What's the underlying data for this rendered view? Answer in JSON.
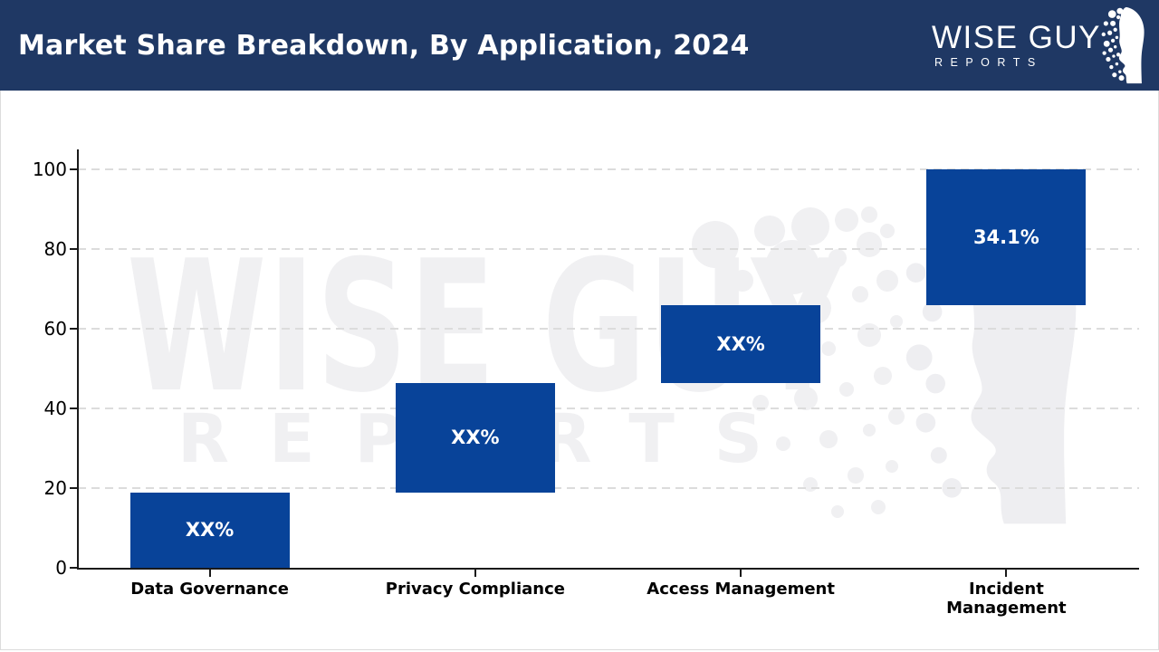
{
  "header": {
    "title": "Market Share Breakdown, By Application, 2024",
    "background": "#1f3864",
    "logo": {
      "line1": "WISE GUY",
      "line2": "REPORTS"
    }
  },
  "watermark": {
    "line1": "WISE GUY",
    "line2": "REPORTS"
  },
  "chart_data": {
    "type": "bar",
    "subtype": "floating-waterfall",
    "title": "Market Share Breakdown, By Application, 2024",
    "categories": [
      "Data Governance",
      "Privacy Compliance",
      "Access Management",
      "Incident\nManagement"
    ],
    "segments": [
      {
        "category": "Data Governance",
        "start": 0,
        "end": 18.9,
        "label": "XX%"
      },
      {
        "category": "Privacy Compliance",
        "start": 18.9,
        "end": 46.4,
        "label": "XX%"
      },
      {
        "category": "Access Management",
        "start": 46.4,
        "end": 65.9,
        "label": "XX%"
      },
      {
        "category": "Incident Management",
        "start": 65.9,
        "end": 100,
        "label": "34.1%"
      }
    ],
    "yticks": [
      0,
      20,
      40,
      60,
      80,
      100
    ],
    "ylim": [
      0,
      105
    ],
    "xlabel": "",
    "ylabel": "",
    "bar_color": "#084399",
    "bar_label_color": "#ffffff",
    "grid": "dashed-horizontal",
    "legend": "none"
  }
}
